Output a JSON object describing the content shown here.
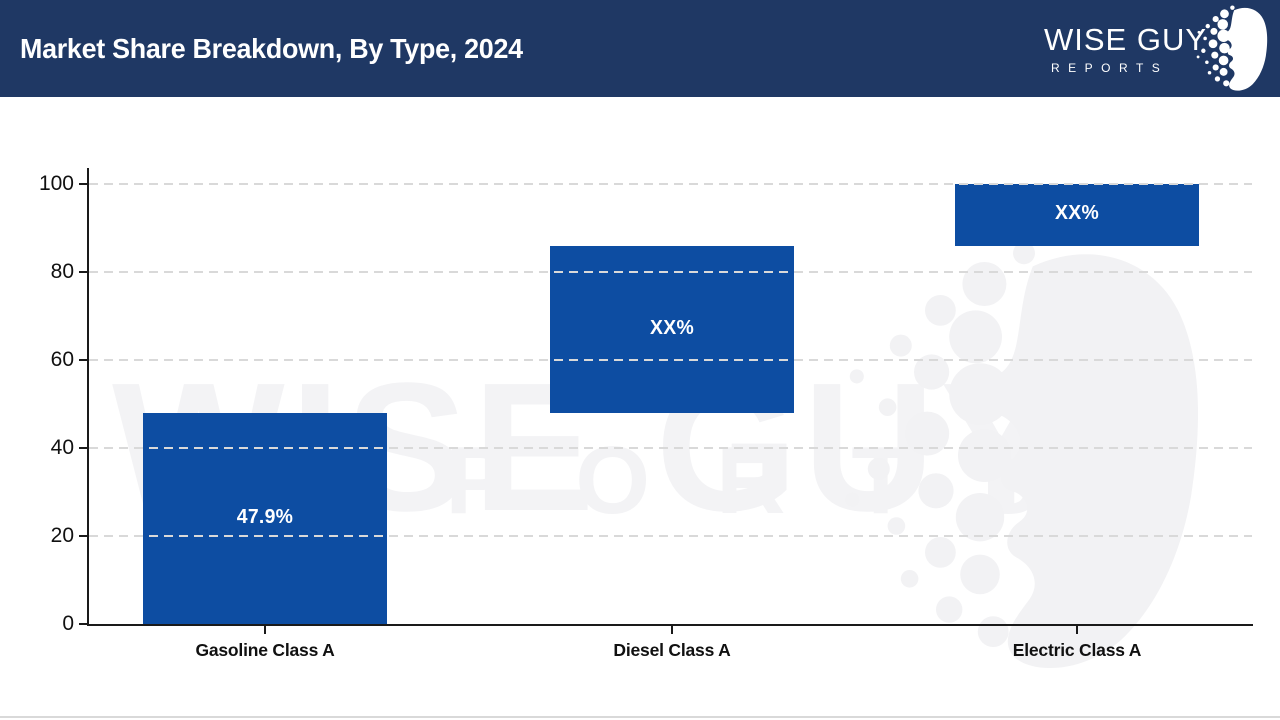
{
  "header": {
    "title": "Market Share Breakdown, By Type, 2024",
    "bg_color": "#1f3864",
    "brand": {
      "line1": "WISE GUY",
      "line2": "REPORTS",
      "head_icon": "dotted-head-profile"
    }
  },
  "watermark": {
    "line1": "WISE GUY",
    "line2": "REPORTS",
    "head_icon": "dotted-head-profile"
  },
  "chart_data": {
    "type": "bar",
    "subtype": "floating-waterfall",
    "title": "Market Share Breakdown, By Type, 2024",
    "categories": [
      "Gasoline Class A",
      "Diesel Class A",
      "Electric Class A"
    ],
    "segments": [
      {
        "category": "Gasoline Class A",
        "start": 0,
        "end": 47.9,
        "label": "47.9%"
      },
      {
        "category": "Diesel Class A",
        "start": 47.9,
        "end": 85.9,
        "label": "XX%"
      },
      {
        "category": "Electric Class A",
        "start": 85.9,
        "end": 100,
        "label": "XX%"
      }
    ],
    "yticks": [
      0,
      20,
      40,
      60,
      80,
      100
    ],
    "ylim": [
      0,
      100
    ],
    "xlabel": "",
    "ylabel": "",
    "grid": "horizontal-dashed",
    "legend": "none",
    "bar_color": "#0d4da2",
    "bar_label_color": "#ffffff",
    "axis_color": "#1a1a1a",
    "grid_color": "#d9d9d9"
  }
}
